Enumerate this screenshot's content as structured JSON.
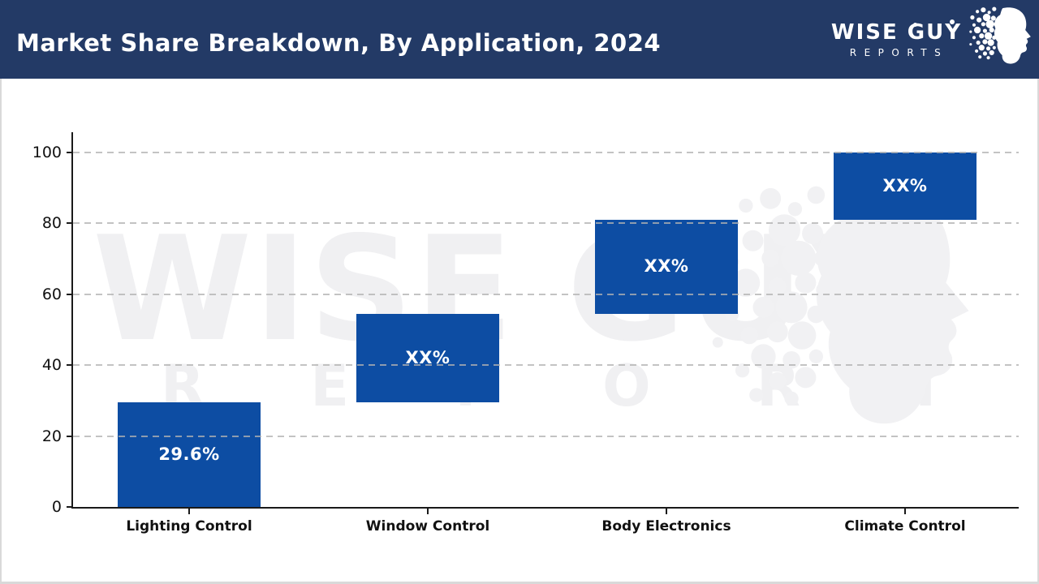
{
  "header": {
    "title": "Market Share Breakdown, By Application, 2024",
    "logo": {
      "primary": "WISE GUY",
      "secondary": "REPORTS"
    }
  },
  "watermark": {
    "line1": "WISE GUY",
    "line2": "R E P O R T S"
  },
  "chart_data": {
    "type": "bar",
    "subtype": "floating-waterfall",
    "title": "Market Share Breakdown, By Application, 2024",
    "categories": [
      "Lighting Control",
      "Window Control",
      "Body Electronics",
      "Climate Control"
    ],
    "segments": [
      {
        "category": "Lighting Control",
        "start": 0,
        "end": 29.6,
        "label": "29.6%"
      },
      {
        "category": "Window Control",
        "start": 29.6,
        "end": 54.5,
        "label": "XX%"
      },
      {
        "category": "Body Electronics",
        "start": 54.5,
        "end": 81.0,
        "label": "XX%"
      },
      {
        "category": "Climate Control",
        "start": 81.0,
        "end": 100.0,
        "label": "XX%"
      }
    ],
    "y_ticks": [
      0,
      20,
      40,
      60,
      80,
      100
    ],
    "ylim": [
      0,
      105
    ],
    "xlabel": "",
    "ylabel": "",
    "values_unit": "%",
    "grid": "horizontal-dashed",
    "legend": "none",
    "colors": {
      "bar": "#0d4da3",
      "header_background": "#233a66",
      "title_text": "#ffffff",
      "axis": "#1a1a1a",
      "gridline": "#c9c9c9",
      "watermark": "#f0f0f2",
      "bar_label_text": "#ffffff"
    }
  }
}
